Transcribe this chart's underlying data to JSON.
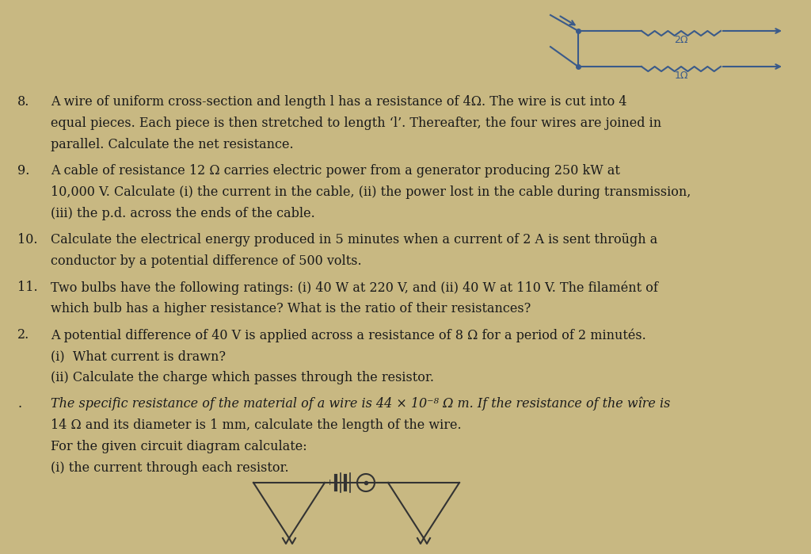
{
  "background_color": "#c8b882",
  "text_color": "#1a1a1a",
  "body_fontsize": 11.5,
  "circuit_color": "#333333",
  "blue_color": "#3a5a8a",
  "lines": [
    {
      "num": "8.",
      "text": "A wire of uniform cross-section and length l has a resistance of 4Ω. The wire is cut into 4",
      "cont": true
    },
    {
      "num": "",
      "text": "equal pieces. Each piece is then stretched to length ‘l’. Thereafter, the four wires are joined in",
      "cont": true
    },
    {
      "num": "",
      "text": "parallel. Calculate the net resistance.",
      "cont": false
    },
    {
      "num": "9.",
      "text": "A cable of resistance 12 Ω carries electric power from a generator producing 250 kW at",
      "cont": true
    },
    {
      "num": "",
      "text": "10,000 V. Calculate (i) the current in the cable, (ii) the power lost in the cable during transmission,",
      "cont": true
    },
    {
      "num": "",
      "text": "(iii) the p.d. across the ends of the cable.",
      "cont": false
    },
    {
      "num": "10.",
      "text": "Calculate the electrical energy produced in 5 minutes when a current of 2 A is sent throügh a",
      "cont": true
    },
    {
      "num": "",
      "text": "conductor by a potential difference of 500 volts.",
      "cont": false
    },
    {
      "num": "11.",
      "text": "Two bulbs have the following ratings: (i) 40 W at 220 V, and (ii) 40 W at 110 V. The filamént of",
      "cont": true
    },
    {
      "num": "",
      "text": "which bulb has a higher resistance? What is the ratio of their resistances?",
      "cont": false
    },
    {
      "num": "2.",
      "text": "A potential difference of 40 V is applied across a resistance of 8 Ω for a period of 2 minutés.",
      "cont": true
    },
    {
      "num": "",
      "text": "(i)  What current is drawn?",
      "cont": false
    },
    {
      "num": "",
      "text": "(ii) Calculate the charge which passes through the resistor.",
      "cont": false
    },
    {
      "num": ".",
      "text": "The specific resistance of the material of a wire is 44 × 10⁻⁸ Ω m. If the resistance of the wîre is",
      "cont": true
    },
    {
      "num": "",
      "text": "14 Ω and its diameter is 1 mm, calculate the length of the wire.",
      "cont": false
    },
    {
      "num": "",
      "text": "For the given circuit diagram calculate:",
      "cont": false
    },
    {
      "num": "",
      "text": "(i) the current through each resistor.",
      "cont": false
    }
  ]
}
